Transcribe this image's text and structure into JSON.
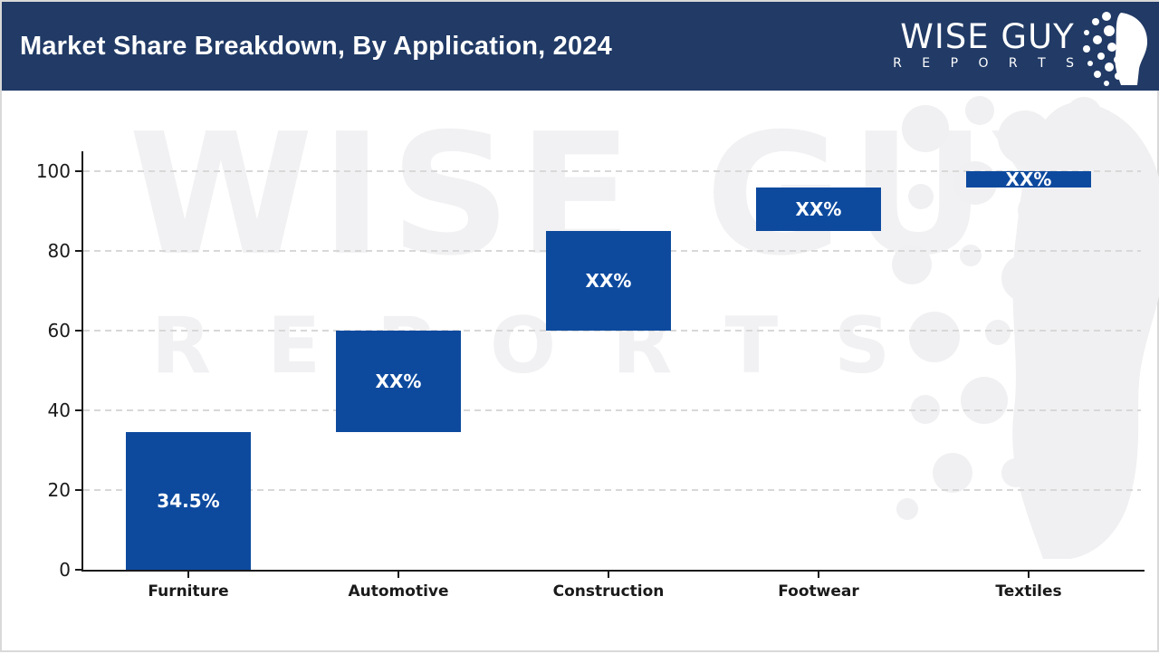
{
  "header": {
    "title": "Market Share Breakdown, By Application, 2024",
    "logo": {
      "line1": "WISE GUY",
      "line2": "R E P O R T S",
      "face_icon": "dotted-face-profile"
    }
  },
  "watermark": {
    "line1": "WISE GUY",
    "line2": "REPORTS",
    "face_icon": "dotted-face-profile"
  },
  "chart_data": {
    "type": "bar",
    "subtype": "waterfall-stacked-percentage",
    "title": "Market Share Breakdown, By Application, 2024",
    "categories": [
      "Furniture",
      "Automotive",
      "Construction",
      "Footwear",
      "Textiles"
    ],
    "segments": [
      {
        "category": "Furniture",
        "start": 0,
        "end": 34.5,
        "label": "34.5%"
      },
      {
        "category": "Automotive",
        "start": 34.5,
        "end": 60,
        "label": "XX%"
      },
      {
        "category": "Construction",
        "start": 60,
        "end": 85,
        "label": "XX%"
      },
      {
        "category": "Footwear",
        "start": 85,
        "end": 96,
        "label": "XX%"
      },
      {
        "category": "Textiles",
        "start": 96,
        "end": 100,
        "label": "XX%"
      }
    ],
    "yticks": [
      0,
      20,
      40,
      60,
      80,
      100
    ],
    "ylim": [
      0,
      105
    ],
    "xlabel": "",
    "ylabel": "",
    "grid": {
      "axis": "y",
      "style": "dashed",
      "color": "#d8d8d8"
    },
    "legend": null,
    "colors": {
      "bar": "#0d4a9e",
      "bar_label": "#ffffff",
      "header_bg": "#213a66",
      "axis": "#1a1a1a",
      "watermark": "#f1f1f3",
      "background": "#ffffff"
    }
  }
}
